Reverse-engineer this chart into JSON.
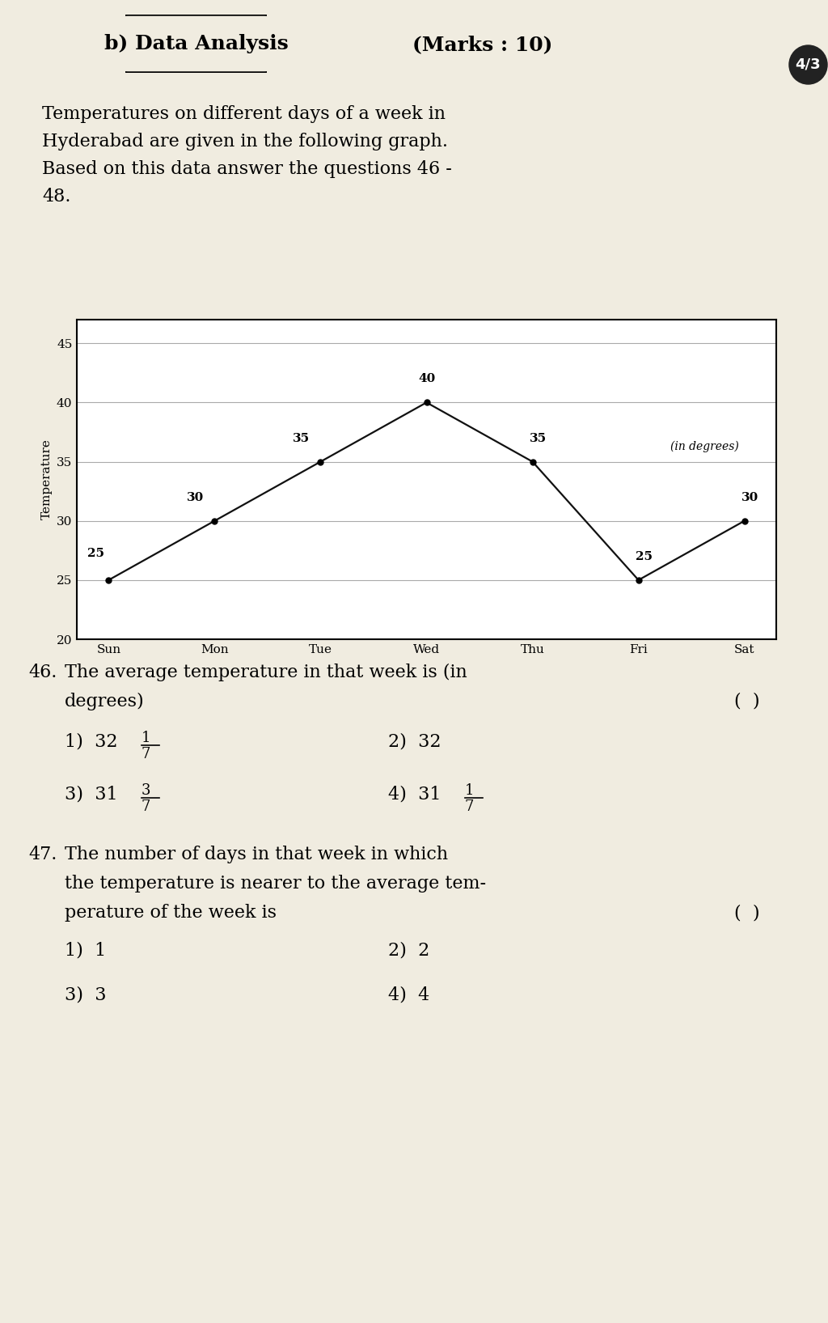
{
  "bg_color": "#dedad0",
  "page_bg": "#f0ece0",
  "title_box_text": "b) Data Analysis",
  "title_marks_text": "(Marks : 10)",
  "intro_lines": [
    "Temperatures on different days of a week in",
    "Hyderabad are given in the following graph.",
    "Based on this data answer the questions 46 -",
    "48."
  ],
  "days": [
    "Sun",
    "Mon",
    "Tue",
    "Wed",
    "Thu",
    "Fri",
    "Sat"
  ],
  "temperatures": [
    25,
    30,
    35,
    40,
    35,
    25,
    30
  ],
  "ylabel": "Temperature",
  "ylabel_note": "(in degrees)",
  "yticks": [
    20,
    25,
    30,
    35,
    40,
    45
  ],
  "ymin": 20,
  "ymax": 45,
  "line_color": "#111111",
  "grid_color": "#aaaaaa",
  "badge_text": "4/3",
  "badge_color": "#222222",
  "font_size_title": 18,
  "font_size_body": 16,
  "font_size_graph": 11
}
